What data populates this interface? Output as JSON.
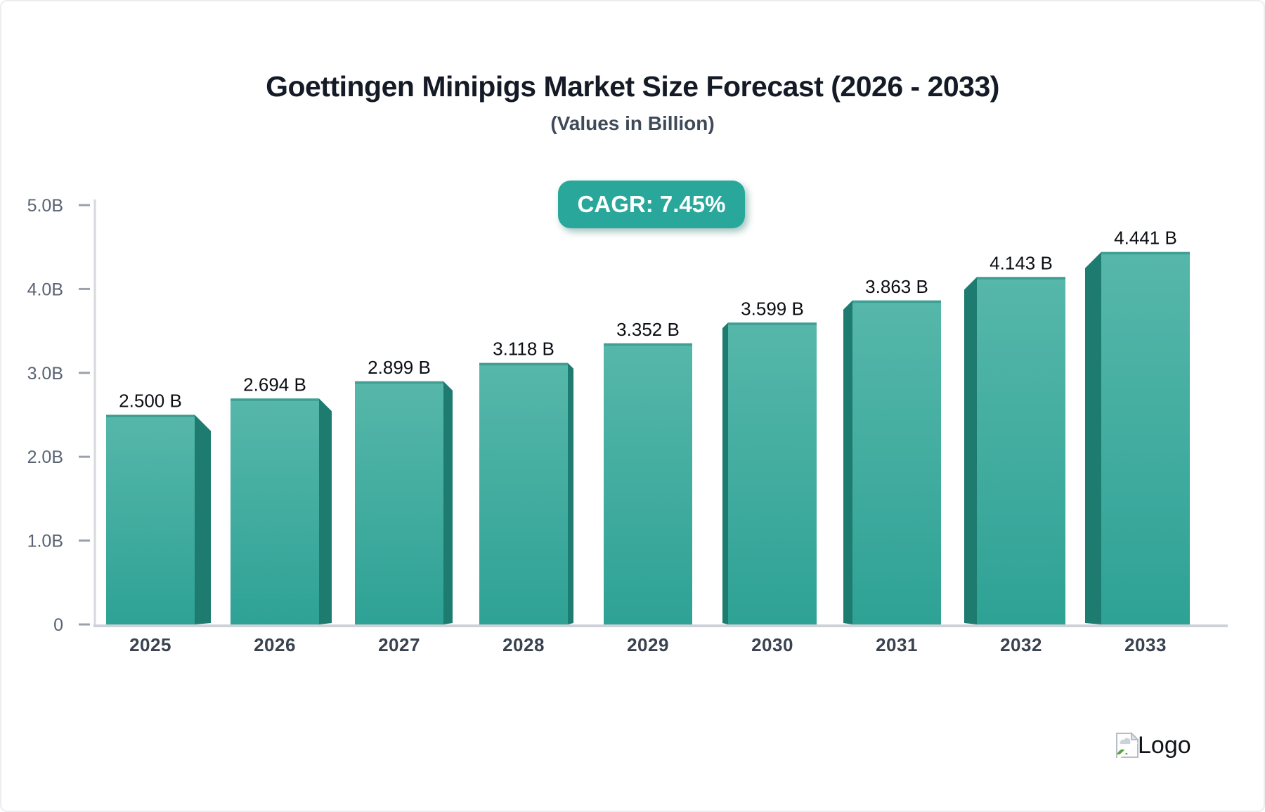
{
  "chart_data": {
    "type": "bar",
    "title": "Goettingen Minipigs Market Size Forecast (2026 - 2033)",
    "subtitle": "(Values in Billion)",
    "cagr_label": "CAGR: 7.45%",
    "cagr_percent": 7.45,
    "categories": [
      "2025",
      "2026",
      "2027",
      "2028",
      "2029",
      "2030",
      "2031",
      "2032",
      "2033"
    ],
    "values": [
      2.5,
      2.694,
      2.899,
      3.118,
      3.352,
      3.599,
      3.863,
      4.143,
      4.441
    ],
    "value_labels": [
      "2.500 B",
      "2.694 B",
      "2.899 B",
      "3.118 B",
      "3.352 B",
      "3.599 B",
      "3.863 B",
      "4.143 B",
      "4.441 B"
    ],
    "xlabel": "",
    "ylabel": "",
    "ylim": [
      0,
      5
    ],
    "y_tick_values": [
      0,
      1,
      2,
      3,
      4,
      5
    ],
    "y_tick_labels": [
      "0",
      "1.0B",
      "2.0B",
      "3.0B",
      "4.0B",
      "5.0B"
    ],
    "grid": "off",
    "legend": "none",
    "bar_style": "3d-perspective-center",
    "colors": {
      "face_top": "#56b7aa",
      "face_bottom": "#2ea295",
      "top_edge": "#3f9f93",
      "side": "#1e7b70",
      "axis_line": "#d5d8dd",
      "baseline": "#ced2d8",
      "tick_mark": "#9aa1ad",
      "tick_label": "#5a6373",
      "category_label": "#39424f",
      "value_label": "#0b0e13",
      "badge_background": "#2aa79b",
      "badge_text": "#ffffff"
    }
  },
  "logo": {
    "text": "Logo",
    "icon": "broken-image-icon"
  }
}
